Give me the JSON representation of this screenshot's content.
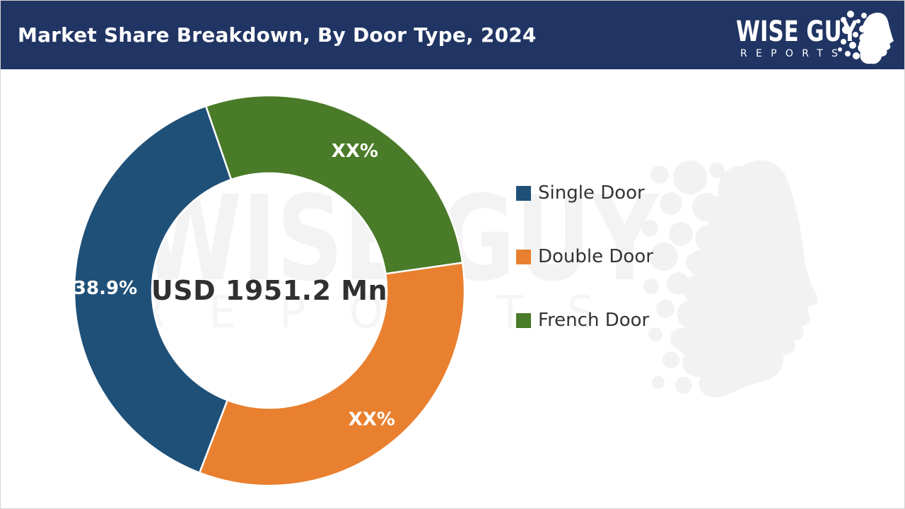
{
  "page": {
    "bg_color": "#ffffff",
    "border_color": "#d4d4d4"
  },
  "header": {
    "bg_color": "#213564",
    "title": "Market Share Breakdown, By Door Type, 2024",
    "logo": {
      "line1": "WISE GUY",
      "line2": "REPORTS"
    }
  },
  "watermark": {
    "line1": "WISE GUY",
    "line2": "REPORTS"
  },
  "chart_data": {
    "type": "pie",
    "subtype": "donut",
    "title": "Market Share Breakdown, By Door Type, 2024",
    "center_label": "USD 1951.2 Mn",
    "start_angle_deg": -19,
    "direction": "clockwise",
    "inner_radius_ratio": 0.6,
    "legend_position": "right",
    "slices": [
      {
        "name": "French Door",
        "value": 28.0,
        "display_label": "XX%",
        "color": "#4A7B28"
      },
      {
        "name": "Double Door",
        "value": 33.1,
        "display_label": "XX%",
        "color": "#E9802F"
      },
      {
        "name": "Single Door",
        "value": 38.9,
        "display_label": "38.9%",
        "color": "#1F5078"
      }
    ]
  },
  "legend": {
    "items": [
      {
        "label": "Single Door",
        "color": "#1F5078"
      },
      {
        "label": "Double Door",
        "color": "#E9802F"
      },
      {
        "label": "French Door",
        "color": "#4A7B28"
      }
    ]
  }
}
